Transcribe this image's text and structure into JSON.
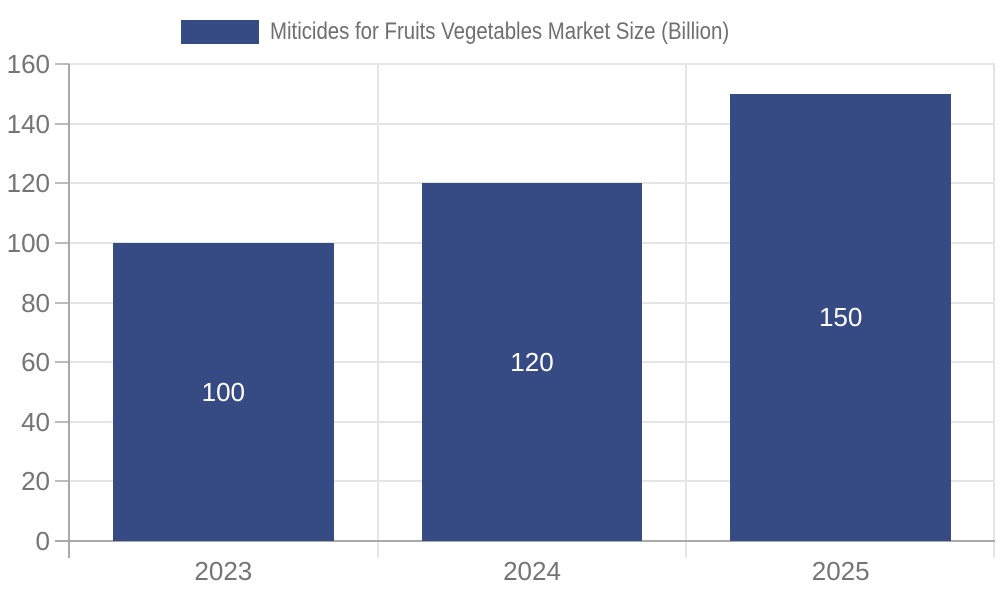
{
  "chart_data": {
    "type": "bar",
    "title": "Miticides for Fruits Vegetables Market Size (Billion)",
    "xlabel": "",
    "ylabel": "",
    "categories": [
      "2023",
      "2024",
      "2025"
    ],
    "series": [
      {
        "name": "Miticides for Fruits Vegetables Market Size (Billion)",
        "values": [
          100,
          120,
          150
        ]
      }
    ],
    "bar_value_labels": [
      "100",
      "120",
      "150"
    ],
    "ylim": [
      0,
      160
    ],
    "yticks": [
      0,
      20,
      40,
      60,
      80,
      100,
      120,
      140,
      160
    ],
    "grid": true,
    "legend_position": "top-center",
    "colors": {
      "bar": "#364a84",
      "bar_value_text": "#ffffff",
      "grid_line": "#e5e5e5",
      "axis_line": "#a9a9a9",
      "tick_mark": "#bcbcbc",
      "tick_text": "#757575",
      "title_text": "#6f6f6f",
      "background": "#ffffff"
    }
  }
}
